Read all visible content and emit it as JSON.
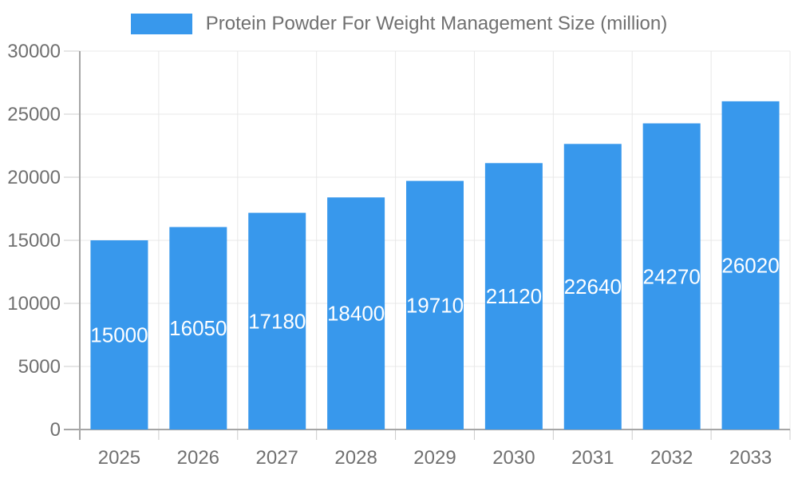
{
  "colors": {
    "bar": "#3898EC",
    "axis_line": "#A6A6A6",
    "gridline": "#E8E8E8",
    "tick_mark": "#CCCCCC",
    "tick_label": "#707070",
    "legend_label": "#707070",
    "value_label": "#FFFFFF",
    "background": "#FFFFFF"
  },
  "chart_data": {
    "type": "bar",
    "title": "Protein Powder For Weight Management Size (million)",
    "legend": {
      "position": "top",
      "entries": [
        "Protein Powder For Weight Management Size (million)"
      ]
    },
    "categories": [
      "2025",
      "2026",
      "2027",
      "2028",
      "2029",
      "2030",
      "2031",
      "2032",
      "2033"
    ],
    "values": [
      15000,
      16050,
      17180,
      18400,
      19710,
      21120,
      22640,
      24270,
      26020
    ],
    "value_labels": [
      "15000",
      "16050",
      "17180",
      "18400",
      "19710",
      "21120",
      "22640",
      "24270",
      "26020"
    ],
    "xlabel": "",
    "ylabel": "",
    "ylim": [
      0,
      30000
    ],
    "ytick_interval": 5000,
    "yticks": [
      "0",
      "5000",
      "10000",
      "15000",
      "20000",
      "25000",
      "30000"
    ],
    "grid": true,
    "value_label_position": "center-of-bar"
  }
}
